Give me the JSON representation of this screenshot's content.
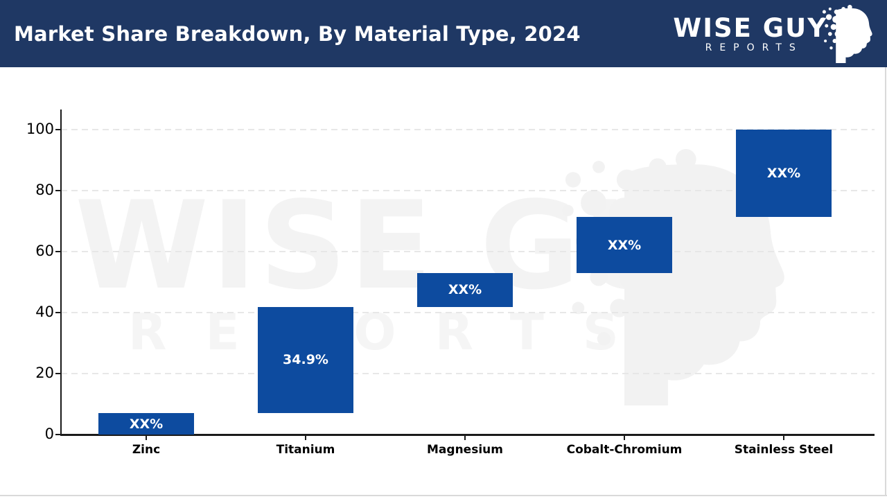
{
  "header": {
    "title": "Market Share Breakdown, By Material Type, 2024",
    "logo": {
      "line1": "WISE GUY",
      "line2": "REPORTS"
    }
  },
  "watermark": {
    "line1": "WISE GUY",
    "line2": "REPORTS"
  },
  "chart_data": {
    "type": "bar",
    "subtype": "waterfall-floating-bars",
    "title": "Market Share Breakdown, By Material Type, 2024",
    "categories": [
      "Zinc",
      "Titanium",
      "Magnesium",
      "Cobalt-Chromium",
      "Stainless Steel"
    ],
    "segments": [
      {
        "category": "Zinc",
        "start": 0,
        "end": 7,
        "value": 7,
        "label": "XX%"
      },
      {
        "category": "Titanium",
        "start": 7,
        "end": 41.9,
        "value": 34.9,
        "label": "34.9%"
      },
      {
        "category": "Magnesium",
        "start": 41.9,
        "end": 52.9,
        "value": 11,
        "label": "XX%"
      },
      {
        "category": "Cobalt-Chromium",
        "start": 52.9,
        "end": 71.3,
        "value": 18.4,
        "label": "XX%"
      },
      {
        "category": "Stainless Steel",
        "start": 71.3,
        "end": 100,
        "value": 28.7,
        "label": "XX%"
      }
    ],
    "yticks": [
      0,
      20,
      40,
      60,
      80,
      100
    ],
    "ylim": [
      0,
      107
    ],
    "xlabel": "",
    "ylabel": "",
    "grid": "horizontal-dashed",
    "legend": "none",
    "bar_color": "#0d4b9f",
    "bar_label_color": "#ffffff",
    "axis_color": "#1a1a1a",
    "grid_color": "#e7e7e7",
    "header_bg": "#1f3864",
    "watermark_color": "#f3f3f3"
  }
}
